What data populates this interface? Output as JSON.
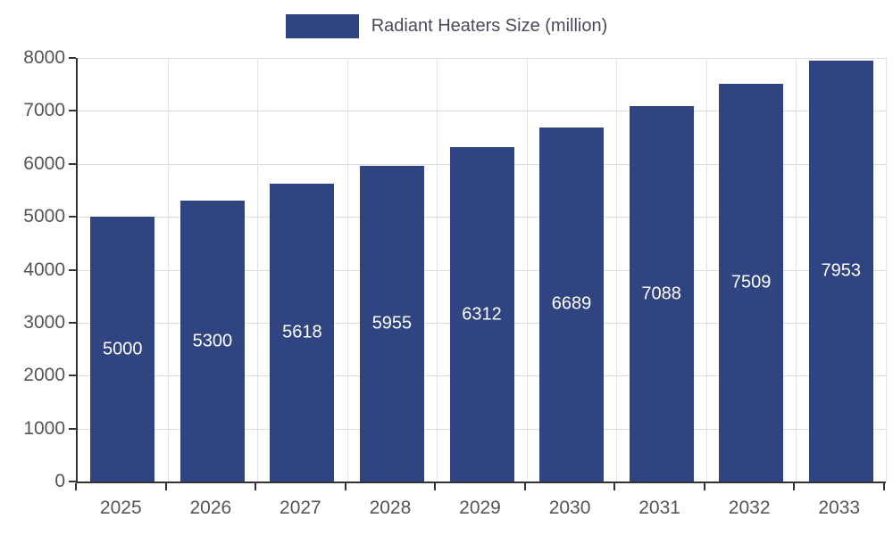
{
  "chart_data": {
    "type": "bar",
    "title": "Radiant Heaters Size (million)",
    "legend_label": "Radiant Heaters Size (million)",
    "legend_position": "top",
    "categories": [
      "2025",
      "2026",
      "2027",
      "2028",
      "2029",
      "2030",
      "2031",
      "2032",
      "2033"
    ],
    "series": [
      {
        "name": "Radiant Heaters Size (million)",
        "values": [
          5000,
          5300,
          5618,
          5955,
          6312,
          6689,
          7088,
          7509,
          7953
        ]
      }
    ],
    "xlabel": "",
    "ylabel": "",
    "ylim": [
      0,
      8000
    ],
    "ytick_step": 1000,
    "ytick_labels": [
      "0",
      "1000",
      "2000",
      "3000",
      "4000",
      "5000",
      "6000",
      "7000",
      "8000"
    ],
    "grid": true,
    "colors": {
      "bar": "#2F4480",
      "bar_value_text": "#ffffff",
      "axis_line": "#333333",
      "gridline": "#dddddd",
      "tick_text": "#555555",
      "legend_text": "#4a4a5a",
      "background": "#ffffff"
    }
  }
}
